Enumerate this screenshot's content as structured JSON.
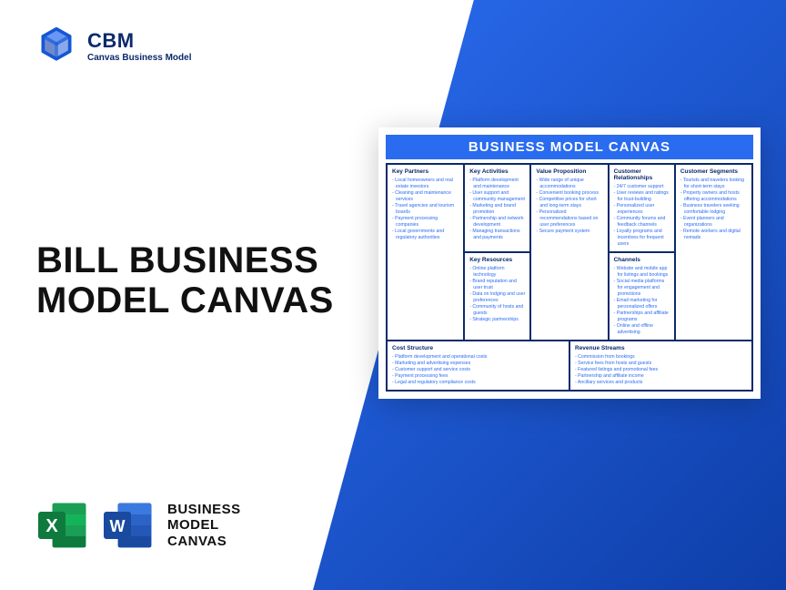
{
  "brand": {
    "name": "CBM",
    "tagline": "Canvas Business Model"
  },
  "colors": {
    "brand_blue": "#0b2a6b",
    "accent_blue": "#2a6cf0",
    "gradient_start": "#2a6cf0",
    "gradient_end": "#0e3ea8",
    "excel_green": "#1b9e55",
    "excel_dark": "#0f7a3e",
    "word_blue": "#2b64c6",
    "word_dark": "#1a4aa0"
  },
  "headline": "BILL BUSINESS MODEL CANVAS",
  "footer_label": "BUSINESS MODEL CANVAS",
  "canvas": {
    "title": "BUSINESS MODEL CANVAS",
    "key_partners": {
      "label": "Key Partners",
      "items": [
        "Local homeowners and real estate investors",
        "Cleaning and maintenance services",
        "Travel agencies and tourism boards",
        "Payment processing companies",
        "Local governments and regulatory authorities"
      ]
    },
    "key_activities": {
      "label": "Key Activities",
      "items": [
        "Platform development and maintenance",
        "User support and community management",
        "Marketing and brand promotion",
        "Partnership and network development",
        "Managing transactions and payments"
      ]
    },
    "key_resources": {
      "label": "Key Resources",
      "items": [
        "Online platform technology",
        "Brand reputation and user trust",
        "Data on lodging and user preferences",
        "Community of hosts and guests",
        "Strategic partnerships"
      ]
    },
    "value_proposition": {
      "label": "Value Proposition",
      "items": [
        "Wide range of unique accommodations",
        "Convenient booking process",
        "Competitive prices for short and long-term stays",
        "Personalized recommendations based on user preferences",
        "Secure payment system"
      ]
    },
    "customer_relationships": {
      "label": "Customer Relationships",
      "items": [
        "24/7 customer support",
        "User reviews and ratings for trust-building",
        "Personalized user experiences",
        "Community forums and feedback channels",
        "Loyalty programs and incentives for frequent users"
      ]
    },
    "channels": {
      "label": "Channels",
      "items": [
        "Website and mobile app for listings and bookings",
        "Social media platforms for engagement and promotions",
        "Email marketing for personalized offers",
        "Partnerships and affiliate programs",
        "Online and offline advertising"
      ]
    },
    "customer_segments": {
      "label": "Customer Segments",
      "items": [
        "Tourists and travelers looking for short-term stays",
        "Property owners and hosts offering accommodations",
        "Business travelers seeking comfortable lodging",
        "Event planners and organizations",
        "Remote workers and digital nomads"
      ]
    },
    "cost_structure": {
      "label": "Cost Structure",
      "items": [
        "Platform development and operational costs",
        "Marketing and advertising expenses",
        "Customer support and service costs",
        "Payment processing fees",
        "Legal and regulatory compliance costs"
      ]
    },
    "revenue_streams": {
      "label": "Revenue Streams",
      "items": [
        "Commission from bookings",
        "Service fees from hosts and guests",
        "Featured listings and promotional fees",
        "Partnership and affiliate income",
        "Ancillary services and products"
      ]
    }
  }
}
